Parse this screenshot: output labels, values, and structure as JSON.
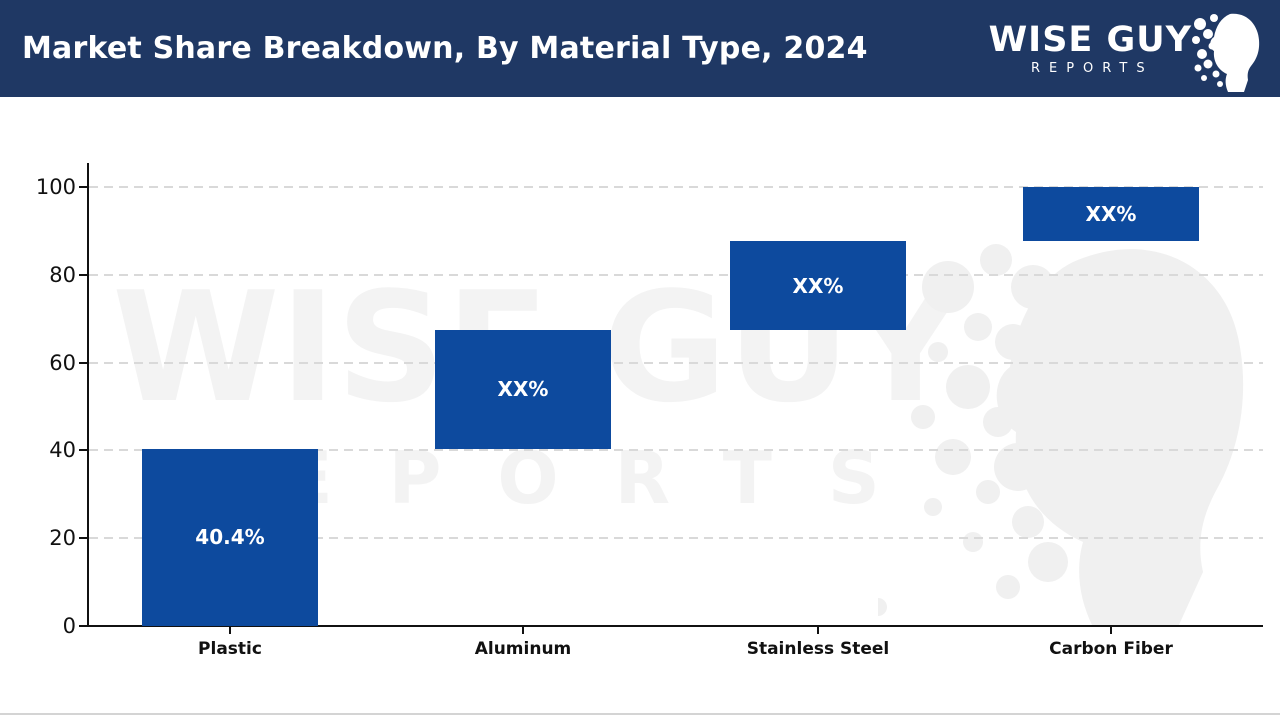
{
  "header": {
    "title": "Market Share Breakdown, By Material Type, 2024",
    "background": "#1f3864",
    "logo": {
      "line1": "WISE GUY",
      "line2": "REPORTS"
    }
  },
  "watermark": {
    "line1": "WISE GUY",
    "line2": "REPORTS"
  },
  "chart_data": {
    "type": "bar",
    "subtype": "waterfall",
    "title": "Market Share Breakdown, By Material Type, 2024",
    "xlabel": "",
    "ylabel": "",
    "categories": [
      "Plastic",
      "Aluminum",
      "Stainless Steel",
      "Carbon Fiber"
    ],
    "series": [
      {
        "name": "Market Share (%)",
        "segments": [
          {
            "category": "Plastic",
            "start": 0,
            "end": 40.4,
            "label": "40.4%"
          },
          {
            "category": "Aluminum",
            "start": 40.4,
            "end": 67.4,
            "label": "XX%"
          },
          {
            "category": "Stainless Steel",
            "start": 67.4,
            "end": 87.6,
            "label": "XX%"
          },
          {
            "category": "Carbon Fiber",
            "start": 87.6,
            "end": 100,
            "label": "XX%"
          }
        ]
      }
    ],
    "yticks": [
      0,
      20,
      40,
      60,
      80,
      100
    ],
    "ylim": [
      0,
      105
    ],
    "grid": {
      "show": true,
      "style": "dashed",
      "color": "#d9d9d9"
    },
    "legend": "none",
    "bar_color": "#0d4a9e",
    "bar_label_color": "#ffffff"
  }
}
